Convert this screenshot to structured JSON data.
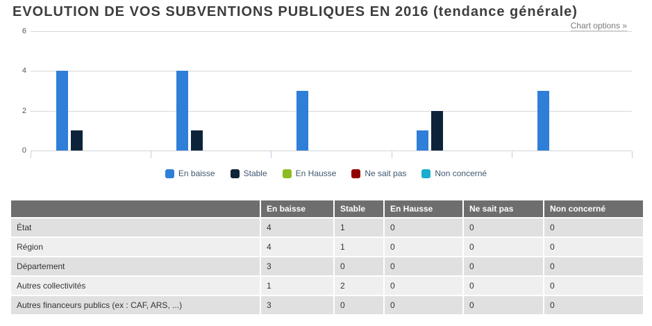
{
  "header": {
    "title": "EVOLUTION DE VOS SUBVENTIONS PUBLIQUES EN 2016 (tendance générale)",
    "chart_options_label": "Chart options »"
  },
  "chart_data": {
    "type": "bar",
    "title": "",
    "categories": [
      "État",
      "Région",
      "Département",
      "Autres collectivités",
      "Autres financeurs publics (ex : CAF, ARS, ...)"
    ],
    "series": [
      {
        "name": "En baisse",
        "color": "#2f7ed8",
        "values": [
          4,
          4,
          3,
          1,
          3
        ]
      },
      {
        "name": "Stable",
        "color": "#0d233a",
        "values": [
          1,
          1,
          0,
          2,
          0
        ]
      },
      {
        "name": "En Hausse",
        "color": "#8bbc21",
        "values": [
          0,
          0,
          0,
          0,
          0
        ]
      },
      {
        "name": "Ne sait pas",
        "color": "#910000",
        "values": [
          0,
          0,
          0,
          0,
          0
        ]
      },
      {
        "name": "Non concerné",
        "color": "#1aadce",
        "values": [
          0,
          0,
          0,
          0,
          0
        ]
      }
    ],
    "ylim": [
      0,
      6
    ],
    "yticks": [
      0,
      2,
      4,
      6
    ],
    "grid": true,
    "legend_position": "bottom-center",
    "x_axis_labels_shown": false,
    "xlabel": "",
    "ylabel": ""
  },
  "table": {
    "columns": [
      "",
      "En baisse",
      "Stable",
      "En Hausse",
      "Ne sait pas",
      "Non concerné"
    ],
    "rows": [
      {
        "label": "État",
        "values": [
          "4",
          "1",
          "0",
          "0",
          "0"
        ]
      },
      {
        "label": "Région",
        "values": [
          "4",
          "1",
          "0",
          "0",
          "0"
        ]
      },
      {
        "label": "Département",
        "values": [
          "3",
          "0",
          "0",
          "0",
          "0"
        ]
      },
      {
        "label": "Autres collectivités",
        "values": [
          "1",
          "2",
          "0",
          "0",
          "0"
        ]
      },
      {
        "label": "Autres financeurs publics (ex : CAF, ARS, ...)",
        "values": [
          "3",
          "0",
          "0",
          "0",
          "0"
        ]
      }
    ]
  }
}
